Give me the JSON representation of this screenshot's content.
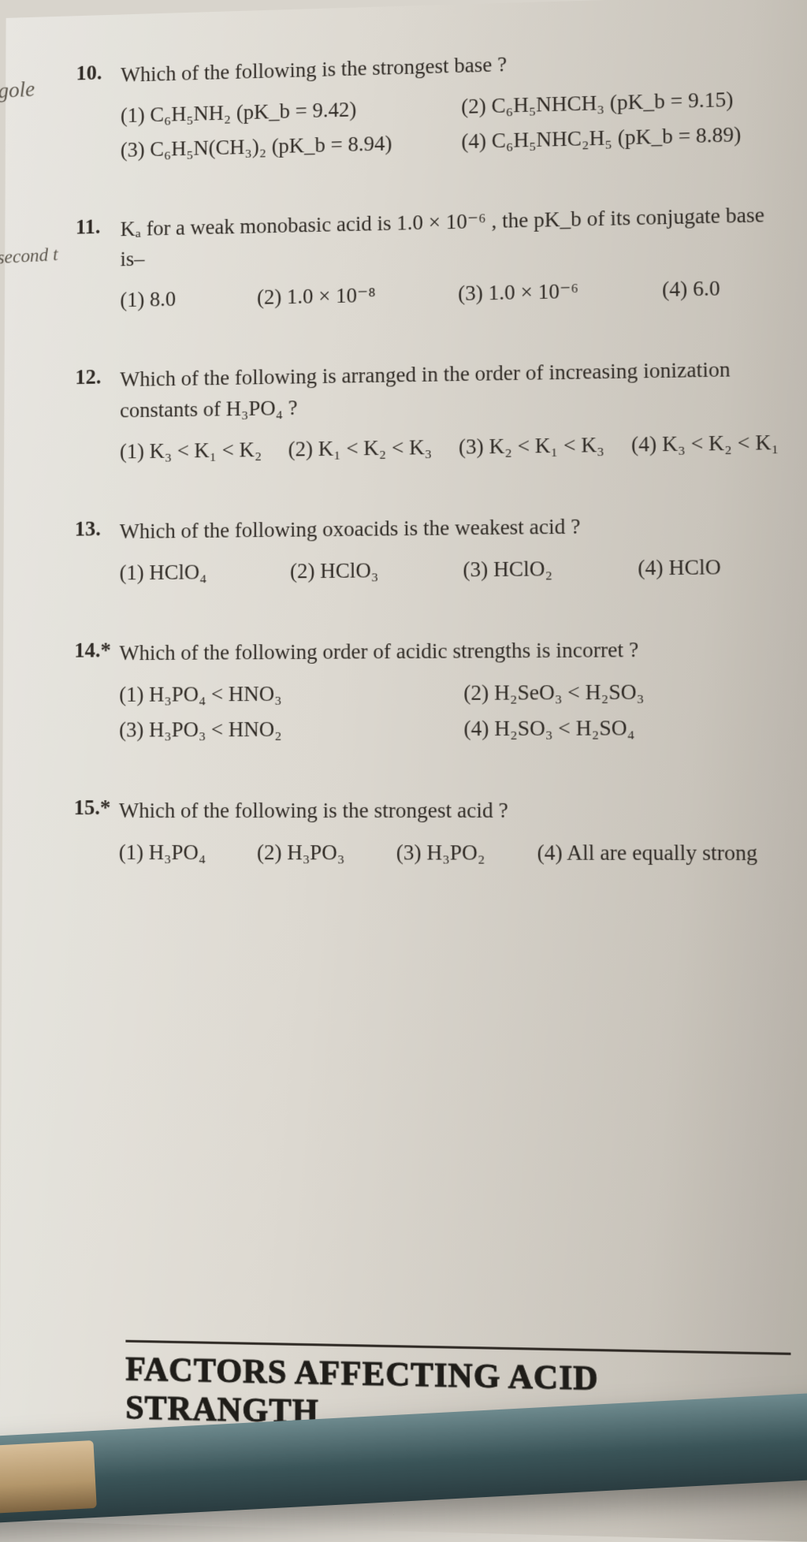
{
  "page": {
    "side_labels": {
      "gole": "gole",
      "second": "second t"
    },
    "footer_title": "FACTORS AFFECTING ACID STRANGTH"
  },
  "colors": {
    "text": "#2b2620",
    "bg_light": "#e8e6e0",
    "bg_dark": "#b0aaa0",
    "pen_body": "#3a5458",
    "pen_wood": "#b3966a"
  },
  "typography": {
    "question_fontsize": 27,
    "footer_fontsize": 42,
    "font_family": "Georgia, Times New Roman, serif"
  },
  "questions": [
    {
      "num": "10.",
      "text": "Which of the following is the strongest base ?",
      "layout": "2col",
      "options": [
        "(1) C₆H₅NH₂ (pK_b = 9.42)",
        "(2) C₆H₅NHCH₃ (pK_b = 9.15)",
        "(3) C₆H₅N(CH₃)₂ (pK_b = 8.94)",
        "(4) C₆H₅NHC₂H₅ (pK_b = 8.89)"
      ]
    },
    {
      "num": "11.",
      "text": "Kₐ for a weak monobasic acid is 1.0 × 10⁻⁶ , the pK_b of its conjugate base is–",
      "layout": "4col",
      "options": [
        "(1) 8.0",
        "(2) 1.0 × 10⁻⁸",
        "(3) 1.0 × 10⁻⁶",
        "(4) 6.0"
      ]
    },
    {
      "num": "12.",
      "text": "Which of the following is arranged in the order of increasing ionization constants of H₃PO₄ ?",
      "layout": "4col",
      "options": [
        "(1) K₃ < K₁ < K₂",
        "(2) K₁ < K₂ < K₃",
        "(3) K₂ < K₁ < K₃",
        "(4) K₃ < K₂ < K₁"
      ]
    },
    {
      "num": "13.",
      "text": "Which of the following oxoacids is the weakest acid ?",
      "layout": "4col",
      "options": [
        "(1) HClO₄",
        "(2) HClO₃",
        "(3) HClO₂",
        "(4) HClO"
      ]
    },
    {
      "num": "14.*",
      "text": "Which of the following order of acidic strengths is incorret ?",
      "layout": "2col",
      "options": [
        "(1) H₃PO₄ < HNO₃",
        "(2) H₂SeO₃ < H₂SO₃",
        "(3) H₃PO₃ < HNO₂",
        "(4) H₂SO₃ < H₂SO₄"
      ]
    },
    {
      "num": "15.*",
      "text": "Which of the following is the strongest acid ?",
      "layout": "4col",
      "options": [
        "(1) H₃PO₄",
        "(2) H₃PO₃",
        "(3) H₃PO₂",
        "(4) All are equally strong"
      ]
    }
  ]
}
